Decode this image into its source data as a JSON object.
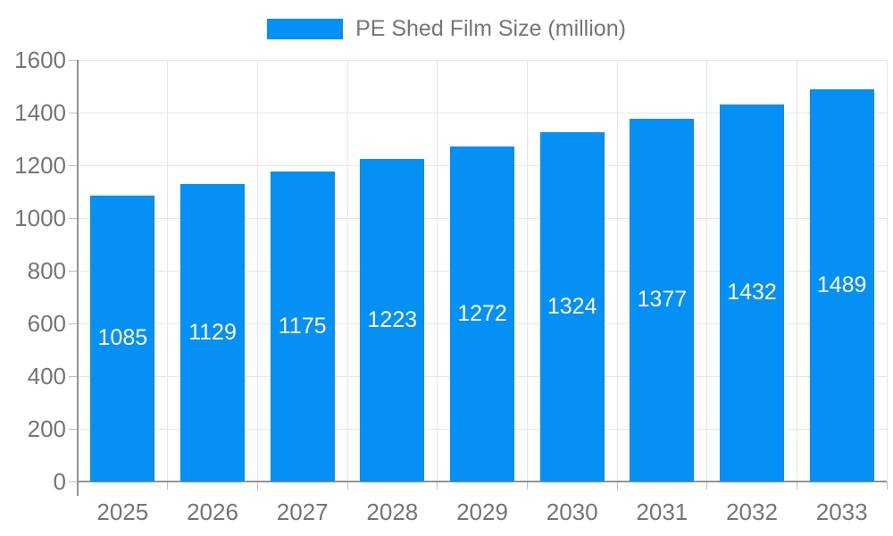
{
  "chart_data": {
    "type": "bar",
    "title": "PE Shed Film Size (million)",
    "categories": [
      "2025",
      "2026",
      "2027",
      "2028",
      "2029",
      "2030",
      "2031",
      "2032",
      "2033"
    ],
    "values": [
      1085,
      1129,
      1175,
      1223,
      1272,
      1324,
      1377,
      1432,
      1489
    ],
    "xlabel": "",
    "ylabel": "",
    "ylim": [
      0,
      1600
    ],
    "ytick_step": 200,
    "yticks": [
      0,
      200,
      400,
      600,
      800,
      1000,
      1200,
      1400,
      1600
    ],
    "grid": true,
    "legend_position": "top-center",
    "value_labels_inside_bars": true,
    "colors": {
      "bar": "#0590F5",
      "value_label": "#FFFFFF",
      "axis_text": "#757575",
      "grid": "#E7E7E7",
      "tick": "#C0C0C0",
      "axis_line": "#949494"
    }
  }
}
